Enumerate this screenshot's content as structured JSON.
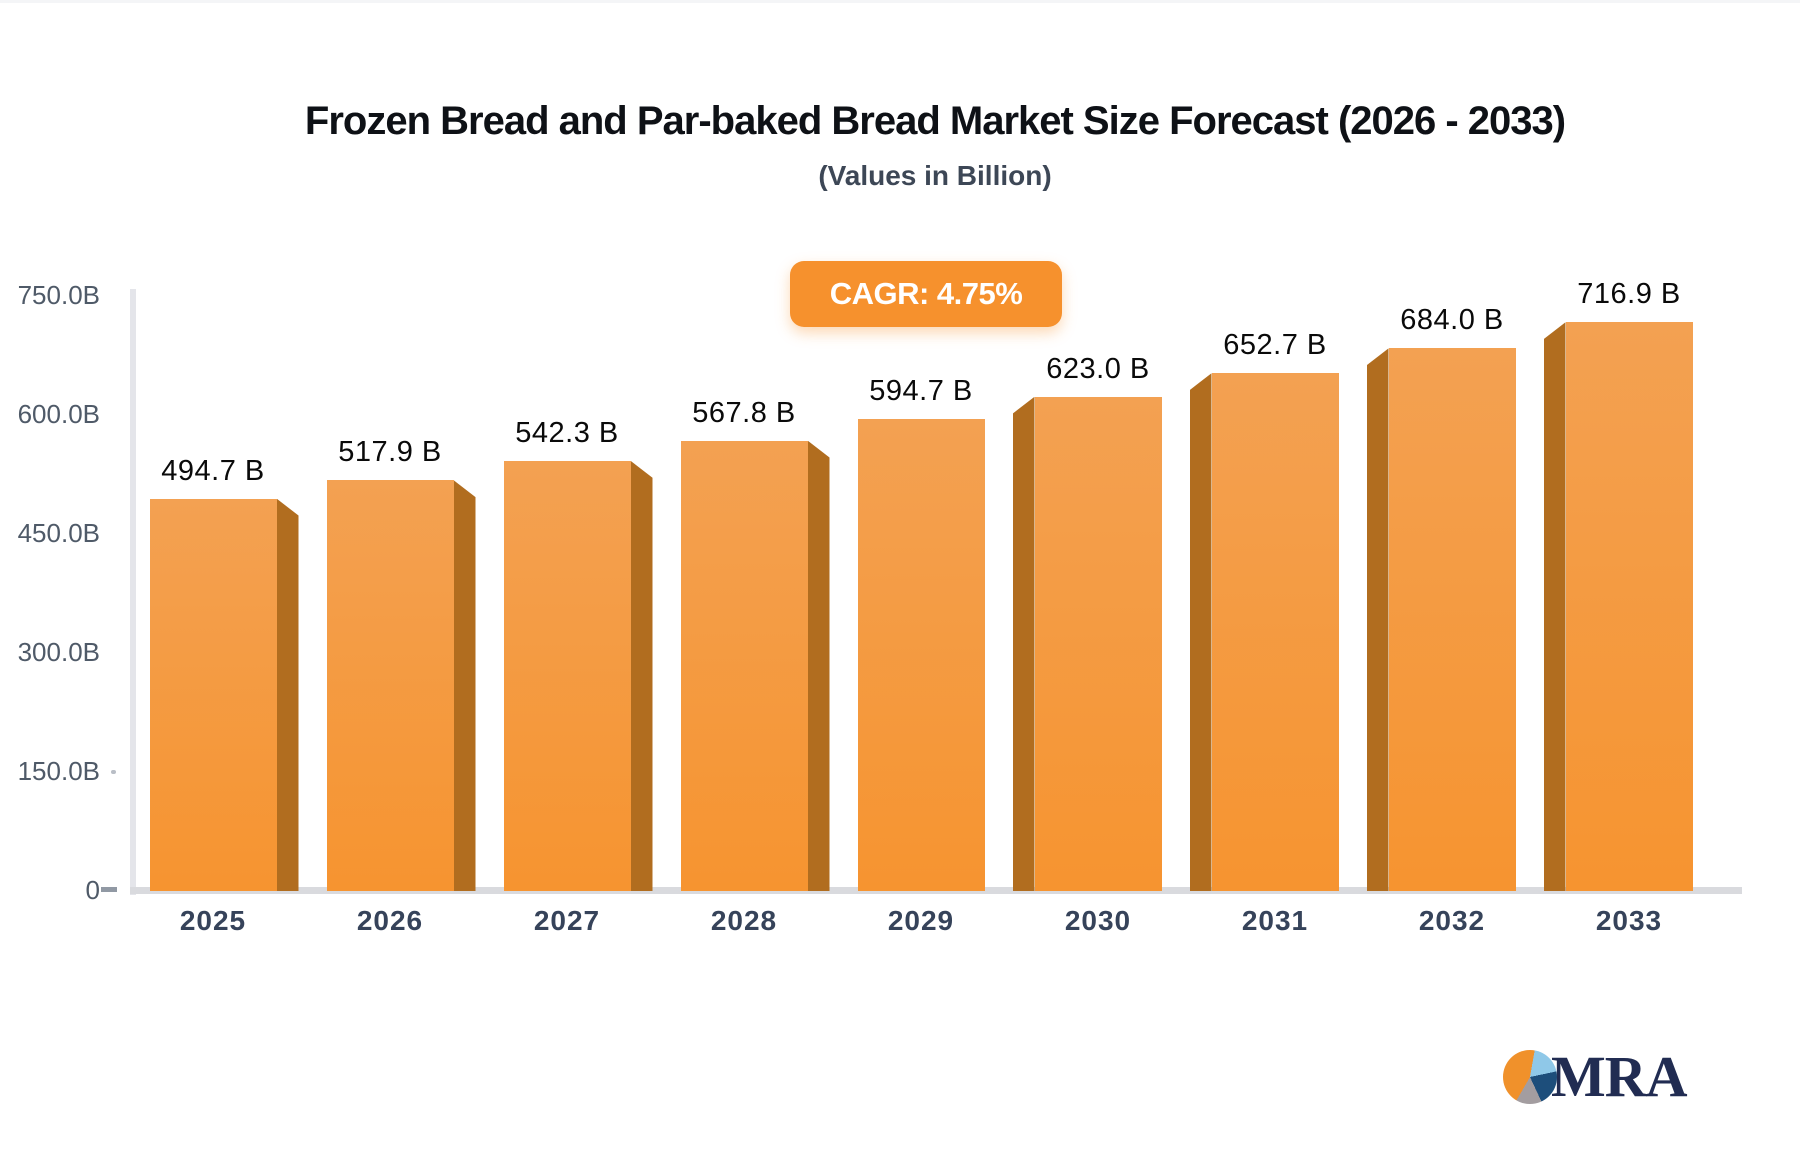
{
  "header": {
    "title": "Frozen Bread and Par-baked Bread Market Size Forecast (2026 - 2033)",
    "subtitle": "(Values in Billion)"
  },
  "badge": {
    "label": "CAGR: 4.75%",
    "background_color": "#f6912d",
    "text_color": "#ffffff"
  },
  "chart_data": {
    "type": "bar",
    "style": "3d-perspective-columns",
    "title": "Frozen Bread and Par-baked Bread Market Size Forecast (2026 - 2033)",
    "subtitle": "(Values in Billion)",
    "annotation": "CAGR: 4.75%",
    "categories": [
      "2025",
      "2026",
      "2027",
      "2028",
      "2029",
      "2030",
      "2031",
      "2032",
      "2033"
    ],
    "values": [
      494.7,
      517.9,
      542.3,
      567.8,
      594.7,
      623.0,
      652.7,
      684.0,
      716.9
    ],
    "value_labels": [
      "494.7 B",
      "517.9 B",
      "542.3 B",
      "567.8 B",
      "594.7 B",
      "623.0 B",
      "652.7 B",
      "684.0 B",
      "716.9 B"
    ],
    "unit": "Billion",
    "xlabel": "",
    "ylabel": "",
    "ylim": [
      0,
      750
    ],
    "yticks": [
      {
        "value": 750,
        "label": "750.0B"
      },
      {
        "value": 600,
        "label": "600.0B"
      },
      {
        "value": 450,
        "label": "450.0B"
      },
      {
        "value": 300,
        "label": "300.0B"
      },
      {
        "value": 150,
        "label": "150.0B"
      },
      {
        "value": 0,
        "label": "0"
      }
    ],
    "grid": false,
    "legend": "none",
    "bar_color_top": "#f3a152",
    "bar_color_bottom": "#f69430",
    "bar_side_color": "#b16d1f"
  },
  "logo": {
    "text": "MRA",
    "pie_colors": [
      "#f0912b",
      "#8fc8e8",
      "#1d4e7b",
      "#a39da0"
    ],
    "text_color": "#212c52"
  }
}
